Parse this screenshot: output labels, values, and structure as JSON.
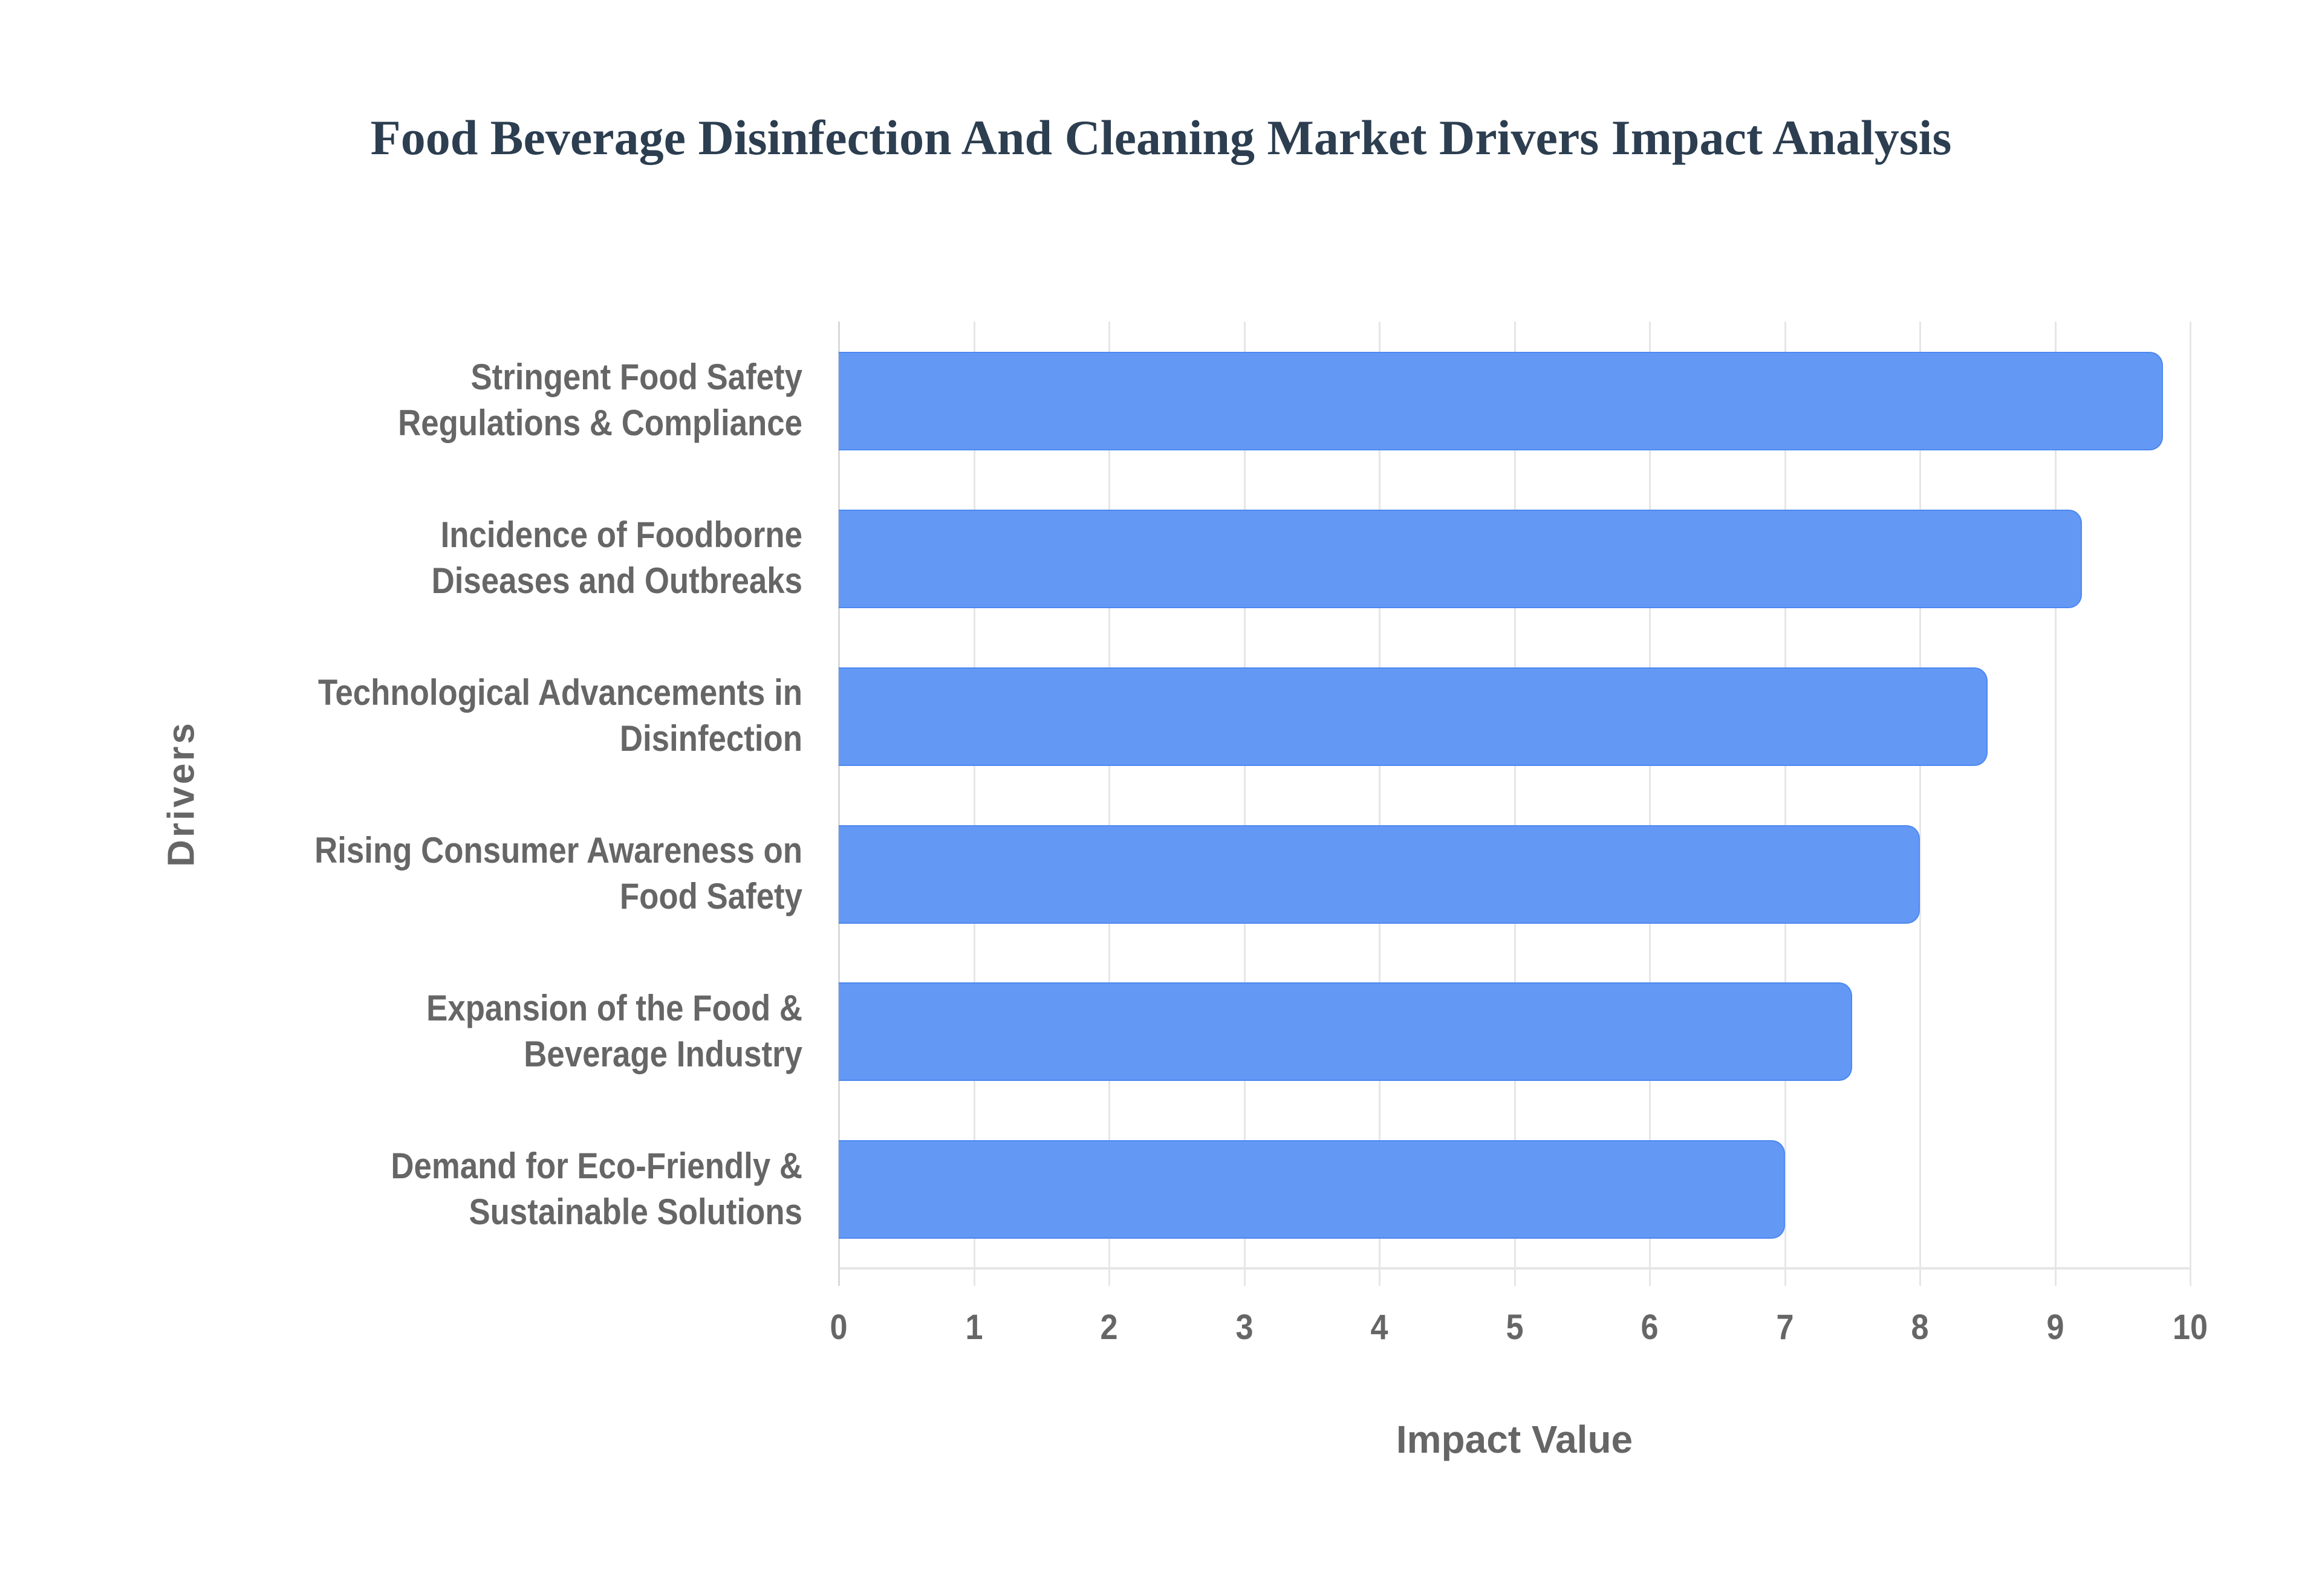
{
  "chart_data": {
    "type": "bar",
    "orientation": "horizontal",
    "title": "Food Beverage Disinfection And Cleaning Market Drivers Impact Analysis",
    "xlabel": "Impact Value",
    "ylabel": "Drivers",
    "xlim": [
      0,
      10
    ],
    "xticks": [
      "0",
      "1",
      "2",
      "3",
      "4",
      "5",
      "6",
      "7",
      "8",
      "9",
      "10"
    ],
    "grid": true,
    "legend": null,
    "bar_color": "#6399f5",
    "categories": [
      [
        "Stringent Food Safety",
        "Regulations & Compliance"
      ],
      [
        "Incidence of Foodborne",
        "Diseases and Outbreaks"
      ],
      [
        "Technological Advancements in",
        "Disinfection"
      ],
      [
        "Rising Consumer Awareness on",
        "Food Safety"
      ],
      [
        "Expansion of the Food &",
        "Beverage Industry"
      ],
      [
        "Demand for Eco-Friendly &",
        "Sustainable Solutions"
      ]
    ],
    "values": [
      9.8,
      9.2,
      8.5,
      8.0,
      7.5,
      7.0
    ]
  }
}
